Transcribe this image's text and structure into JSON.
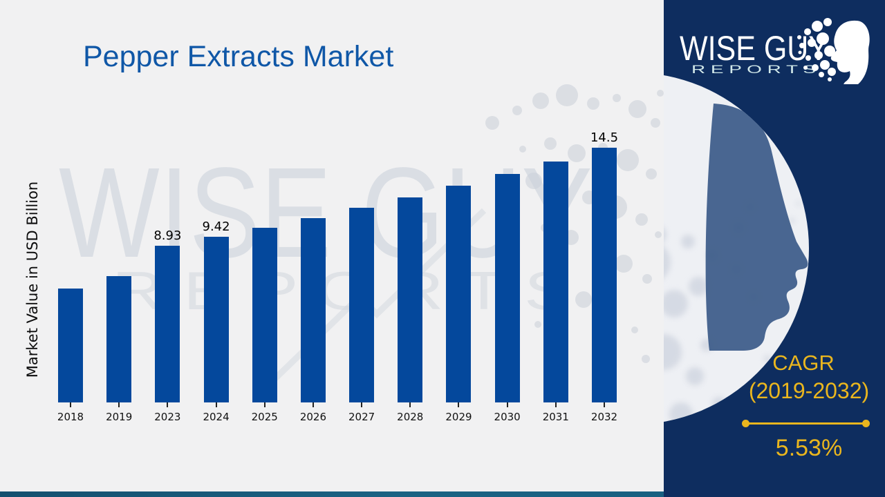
{
  "header": {
    "title": "Pepper Extracts Market"
  },
  "watermark": {
    "line1": "WISE GUY",
    "line2": "R E P O R T S"
  },
  "brand": {
    "wordmark": "WISE GUY",
    "sub": "R E P O R T S"
  },
  "cagr": {
    "line1": "CAGR",
    "line2": "(2019-2032)",
    "value": "5.53%"
  },
  "chart_data": {
    "type": "bar",
    "title": "Pepper Extracts Market",
    "categories": [
      "2018",
      "2019",
      "2023",
      "2024",
      "2025",
      "2026",
      "2027",
      "2028",
      "2029",
      "2030",
      "2031",
      "2032"
    ],
    "values": [
      6.5,
      7.2,
      8.93,
      9.42,
      9.94,
      10.49,
      11.07,
      11.68,
      12.33,
      13.01,
      13.73,
      14.5
    ],
    "bar_labels": [
      "",
      "",
      "8.93",
      "9.42",
      "",
      "",
      "",
      "",
      "",
      "",
      "",
      "14.5"
    ],
    "xlabel": "",
    "ylabel": "Market Value in USD Billion",
    "ylim": [
      0,
      16
    ],
    "grid": false,
    "legend": "none",
    "bar_color": "#04489c"
  },
  "colors": {
    "background": "#f1f1f2",
    "bar_blue": "#04489c",
    "title_blue": "#0f57a7",
    "panel_navy": "#0e2d5f",
    "accent_gold": "#eab61e",
    "watermark_gray": "#ccd2db",
    "bottom_strip_teal": "#1b6283"
  }
}
